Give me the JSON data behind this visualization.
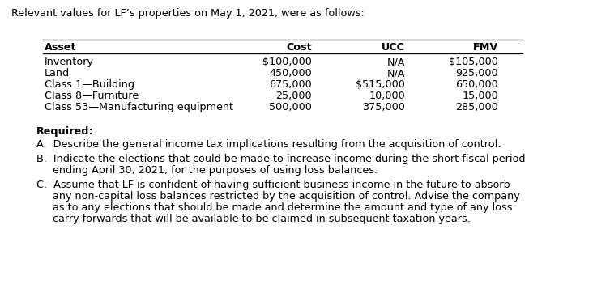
{
  "title": "Relevant values for LF’s properties on May 1, 2021, were as follows:",
  "header": [
    "Asset",
    "Cost",
    "UCC",
    "FMV"
  ],
  "rows": [
    [
      "Inventory",
      "$100,000",
      "N/A",
      "$105,000"
    ],
    [
      "Land",
      "450,000",
      "N/A",
      "925,000"
    ],
    [
      "Class 1—Building",
      "675,000",
      "$515,000",
      "650,000"
    ],
    [
      "Class 8—Furniture",
      "25,000",
      "10,000",
      "15,000"
    ],
    [
      "Class 53—Manufacturing equipment",
      "500,000",
      "375,000",
      "285,000"
    ]
  ],
  "required_label": "Required:",
  "item_A": "A.  Describe the general income tax implications resulting from the acquisition of control.",
  "item_B_line1": "B.  Indicate the elections that could be made to increase income during the short fiscal period",
  "item_B_line2": "     ending April 30, 2021, for the purposes of using loss balances.",
  "item_C_line1": "C.  Assume that LF is confident of having sufficient business income in the future to absorb",
  "item_C_line2": "     any non-capital loss balances restricted by the acquisition of control. Advise the company",
  "item_C_line3": "     as to any elections that should be made and determine the amount and type of any loss",
  "item_C_line4": "     carry forwards that will be available to be claimed in subsequent taxation years.",
  "bg_color": "#ffffff",
  "text_color": "#000000",
  "font_size": 9.2,
  "title_font_size": 9.2
}
